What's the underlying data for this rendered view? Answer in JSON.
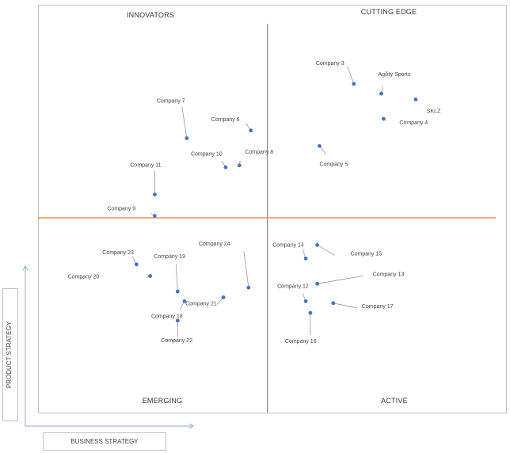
{
  "chart_data": {
    "type": "scatter",
    "title": "",
    "quadrants": {
      "top_left": "INNOVATORS",
      "top_right": "CUTTING EDGE",
      "bottom_left": "EMERGING",
      "bottom_right": "ACTIVE"
    },
    "xlabel": "BUSINESS STRATEGY",
    "ylabel": "PRODUCT STRATEGY",
    "xlim": [
      0,
      100
    ],
    "ylim": [
      0,
      100
    ],
    "colors": {
      "point": "#4472c4",
      "horizontal_divider": "#ed7d31",
      "vertical_divider": "#808080"
    },
    "points": [
      {
        "name": "Company 3",
        "x": 69,
        "y": 84.5
      },
      {
        "name": "Agility Sports",
        "x": 75,
        "y": 82
      },
      {
        "name": "SKLZ",
        "x": 82.5,
        "y": 80.5
      },
      {
        "name": "Company 4",
        "x": 75.5,
        "y": 75.5
      },
      {
        "name": "Company 5",
        "x": 61.5,
        "y": 68.5
      },
      {
        "name": "Company 7",
        "x": 32.5,
        "y": 70.5
      },
      {
        "name": "Company 6",
        "x": 46.5,
        "y": 72.5
      },
      {
        "name": "Company 8",
        "x": 44,
        "y": 63.5
      },
      {
        "name": "Company 10",
        "x": 41,
        "y": 63
      },
      {
        "name": "Company 11",
        "x": 25.5,
        "y": 56
      },
      {
        "name": "Company 9",
        "x": 25.5,
        "y": 50.5
      },
      {
        "name": "Company 23",
        "x": 21.5,
        "y": 38
      },
      {
        "name": "Company 20",
        "x": 24.5,
        "y": 35
      },
      {
        "name": "Company 19",
        "x": 30.5,
        "y": 31
      },
      {
        "name": "Company 24",
        "x": 46,
        "y": 32
      },
      {
        "name": "Company 21",
        "x": 40.5,
        "y": 29.5
      },
      {
        "name": "Company 18",
        "x": 32,
        "y": 28.5
      },
      {
        "name": "Company 22",
        "x": 30.5,
        "y": 23.5
      },
      {
        "name": "Company 14",
        "x": 58.5,
        "y": 39.5
      },
      {
        "name": "Company 15",
        "x": 61,
        "y": 43
      },
      {
        "name": "Company 13",
        "x": 61,
        "y": 33
      },
      {
        "name": "Company 12",
        "x": 58.5,
        "y": 28.5
      },
      {
        "name": "Company 17",
        "x": 64.5,
        "y": 28
      },
      {
        "name": "Company 16",
        "x": 59.5,
        "y": 25.5
      }
    ]
  }
}
